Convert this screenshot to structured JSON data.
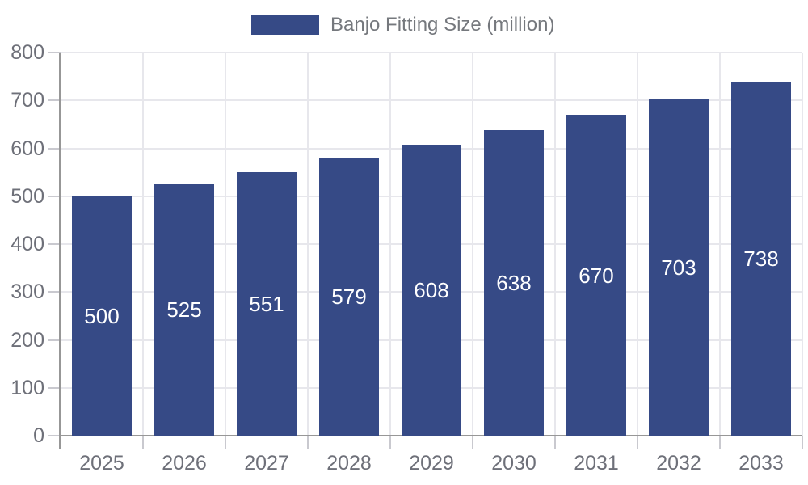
{
  "legend": {
    "label": "Banjo Fitting Size (million)"
  },
  "colors": {
    "bar": "#364a86",
    "grid_line": "#e7e7ec",
    "axis_line": "#979797",
    "tick_mark": "#c9c9cf",
    "axis_label": "#6e7079",
    "legend_text": "#75787d",
    "value_label": "#ffffff",
    "background": "#ffffff"
  },
  "chart_data": {
    "type": "bar",
    "title": "",
    "categories": [
      "2025",
      "2026",
      "2027",
      "2028",
      "2029",
      "2030",
      "2031",
      "2032",
      "2033"
    ],
    "series": [
      {
        "name": "Banjo Fitting Size (million)",
        "values": [
          500,
          525,
          551,
          579,
          608,
          638,
          670,
          703,
          738
        ]
      }
    ],
    "xlabel": "",
    "ylabel": "",
    "ylim": [
      0,
      800
    ],
    "yticks": [
      0,
      100,
      200,
      300,
      400,
      500,
      600,
      700,
      800
    ],
    "grid": true,
    "vertical_grid": true,
    "legend_position": "top-center",
    "value_label_position": "inside-center"
  }
}
